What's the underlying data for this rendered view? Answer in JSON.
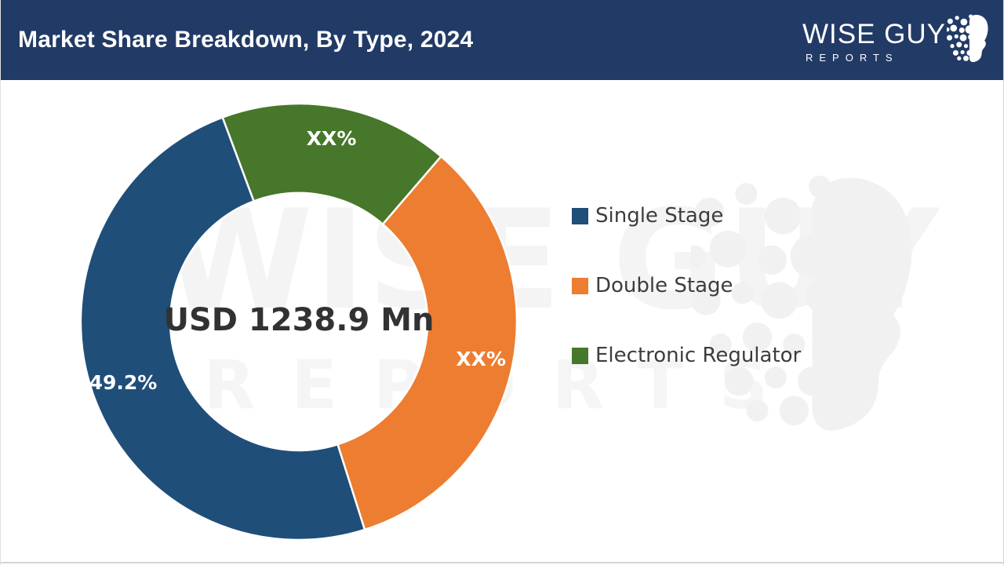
{
  "header": {
    "title": "Market Share Breakdown, By Type, 2024",
    "bg_color": "#223A66",
    "logo": {
      "line1": "WISE GUY",
      "line2": "R E P O R T S"
    }
  },
  "watermark": {
    "line1": "WISE GUY",
    "line2": "R E P O R T S"
  },
  "chart_data": {
    "type": "pie",
    "subtype": "donut",
    "title": "Market Share Breakdown, By Type, 2024",
    "center_label": "USD 1238.9 Mn",
    "legend_position": "right",
    "start_angle_deg": 162.4,
    "clockwise_draw_order": [
      0,
      2,
      1
    ],
    "segments": [
      {
        "label": "Single Stage",
        "value_pct": 49.2,
        "display_label": "49.2%",
        "color": "#1F4E79"
      },
      {
        "label": "Double Stage",
        "value_pct": 33.8,
        "display_label": "XX%",
        "color": "#ED7D31"
      },
      {
        "label": "Electronic Regulator",
        "value_pct": 17.0,
        "display_label": "XX%",
        "color": "#47772A"
      }
    ]
  }
}
